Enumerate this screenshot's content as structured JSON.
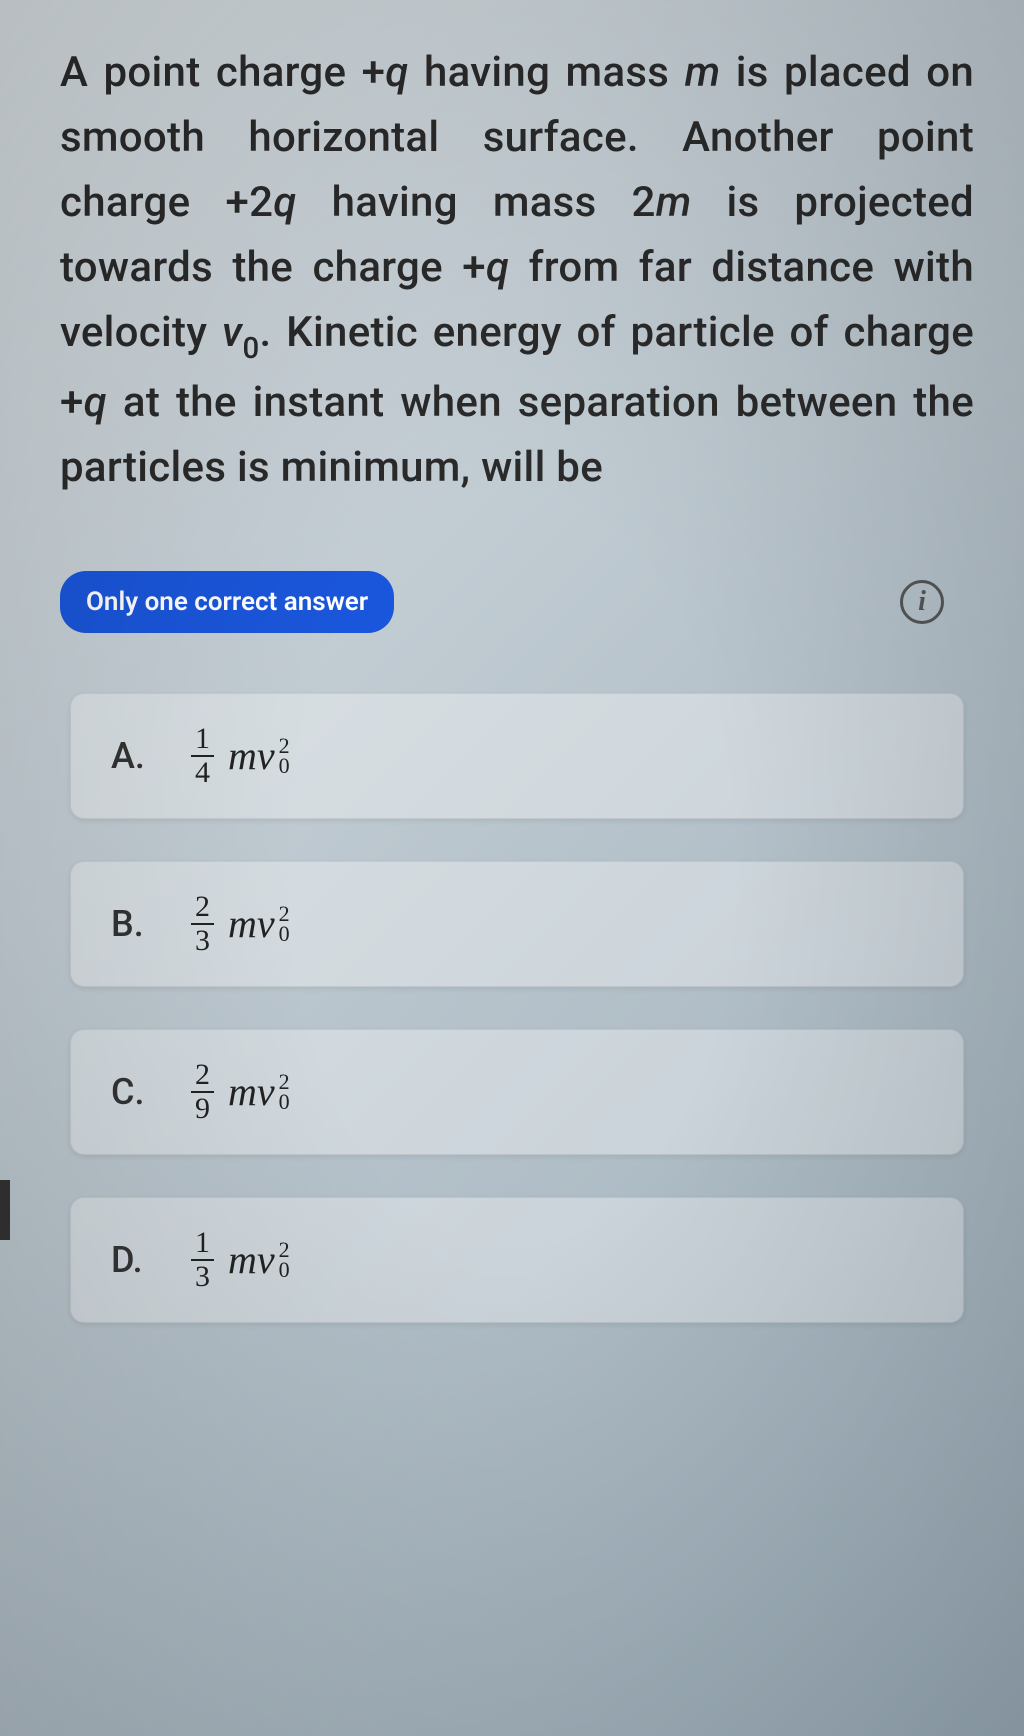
{
  "question": {
    "text_parts": [
      "A point charge +",
      "q",
      " having mass ",
      "m",
      " is placed on smooth horizontal surface. Another point charge +2",
      "q",
      " having mass 2",
      "m",
      " is projected towards the charge +",
      "q",
      " from far distance with velocity ",
      "v",
      "0",
      ". Kinetic energy of particle of charge +",
      "q",
      " at the instant when separation between the particles is minimum, will be"
    ]
  },
  "badge_label": "Only one correct answer",
  "info_glyph": "i",
  "options": [
    {
      "letter": "A.",
      "frac_num": "1",
      "frac_den": "4",
      "term": "mv",
      "sup": "2",
      "sub": "0"
    },
    {
      "letter": "B.",
      "frac_num": "2",
      "frac_den": "3",
      "term": "mv",
      "sup": "2",
      "sub": "0"
    },
    {
      "letter": "C.",
      "frac_num": "2",
      "frac_den": "9",
      "term": "mv",
      "sup": "2",
      "sub": "0"
    },
    {
      "letter": "D.",
      "frac_num": "1",
      "frac_den": "3",
      "term": "mv",
      "sup": "2",
      "sub": "0"
    }
  ],
  "colors": {
    "badge_bg": "#1a56db",
    "text": "#2a2a2a"
  }
}
